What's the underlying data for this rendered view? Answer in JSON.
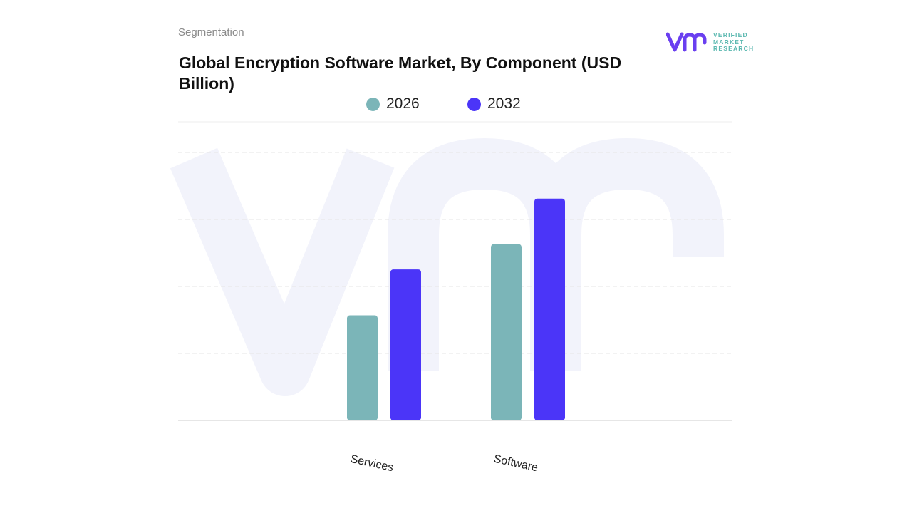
{
  "header": {
    "section_label": "Segmentation",
    "title": "Global Encryption Software Market, By Component (USD Billion)"
  },
  "logo": {
    "line1": "VERIFIED",
    "line2": "MARKET",
    "line3": "RESEARCH",
    "brand_color": "#6a3ff0",
    "text_color": "#5bb8b0"
  },
  "chart_data": {
    "type": "bar",
    "title": "Global Encryption Software Market, By Component (USD Billion)",
    "categories": [
      "Services",
      "Software"
    ],
    "series": [
      {
        "name": "2026",
        "color": "#7bb5b8",
        "values": [
          3.16,
          5.3
        ]
      },
      {
        "name": "2032",
        "color": "#4b35f8",
        "values": [
          4.54,
          6.67
        ]
      }
    ],
    "xlabel": "",
    "ylabel": "",
    "ylim": [
      0,
      9
    ],
    "grid": true,
    "legend_position": "top-center",
    "tick_labels_visible": false,
    "x_tick_rotation": 12
  }
}
